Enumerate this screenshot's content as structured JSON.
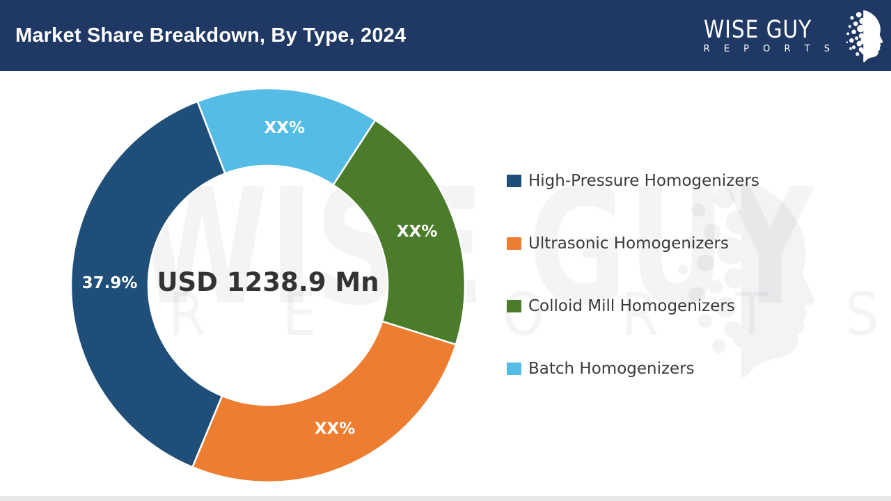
{
  "header": {
    "title": "Market Share Breakdown, By Type, 2024",
    "bg_color": "#1F3864",
    "logo": {
      "line1": "WISE GUY",
      "line2": "R E P O R T S"
    }
  },
  "watermark": {
    "line1": "WISE GUY",
    "line2": "R E P O R T S"
  },
  "chart_data": {
    "type": "pie",
    "subtype": "donut",
    "title": "Market Share Breakdown, By Type, 2024",
    "center_label": "USD 1238.9 Mn",
    "start_angle_deg": -21,
    "direction": "clockwise",
    "legend_position": "right",
    "outer_radius_px": 283,
    "inner_radius_px": 172,
    "segments": [
      {
        "label": "Batch Homogenizers",
        "display_value": "XX%",
        "share_pct_est": 15.0,
        "color": "#55BCE6"
      },
      {
        "label": "Colloid Mill Homogenizers",
        "display_value": "XX%",
        "share_pct_est": 20.7,
        "color": "#4A7C2B"
      },
      {
        "label": "Ultrasonic Homogenizers",
        "display_value": "XX%",
        "share_pct_est": 26.4,
        "color": "#ED7D31"
      },
      {
        "label": "High-Pressure Homogenizers",
        "display_value": "37.9%",
        "share_pct_est": 37.9,
        "color": "#1F4E78"
      }
    ]
  },
  "legend": {
    "items": [
      {
        "label": "High-Pressure Homogenizers",
        "color": "#1F4E78"
      },
      {
        "label": "Ultrasonic Homogenizers",
        "color": "#ED7D31"
      },
      {
        "label": "Colloid Mill Homogenizers",
        "color": "#4A7C2B"
      },
      {
        "label": "Batch Homogenizers",
        "color": "#55BCE6"
      }
    ]
  }
}
